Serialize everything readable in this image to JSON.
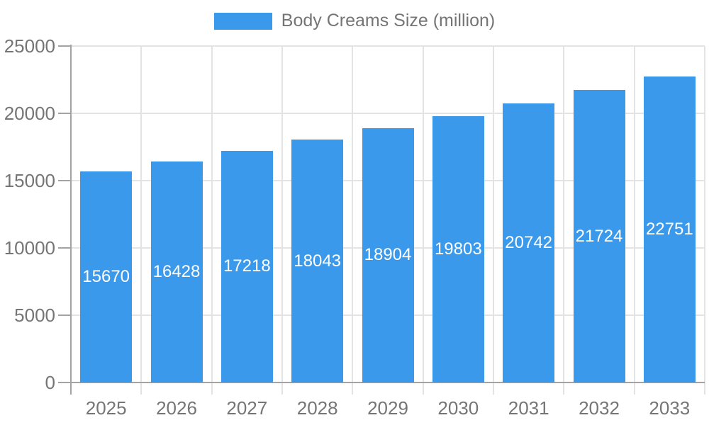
{
  "legend": {
    "label": "Body Creams Size (million)"
  },
  "chart_data": {
    "type": "bar",
    "title": "Body Creams Size (million)",
    "categories": [
      "2025",
      "2026",
      "2027",
      "2028",
      "2029",
      "2030",
      "2031",
      "2032",
      "2033"
    ],
    "series": [
      {
        "name": "Body Creams Size (million)",
        "values": [
          15670,
          16428,
          17218,
          18043,
          18904,
          19803,
          20742,
          21724,
          22751
        ]
      }
    ],
    "value_labels": [
      "15670",
      "16428",
      "17218",
      "18043",
      "18904",
      "19803",
      "20742",
      "21724",
      "22751"
    ],
    "ytick_labels": [
      "0",
      "5000",
      "10000",
      "15000",
      "20000",
      "25000"
    ],
    "yticks": [
      0,
      5000,
      10000,
      15000,
      20000,
      25000
    ],
    "ylim": [
      0,
      25000
    ],
    "xlabel": "",
    "ylabel": "",
    "grid": true,
    "legend_position": "top",
    "colors": {
      "bar": "#3B99EC",
      "grid": "#E3E3E3",
      "axis": "#A3A3A3",
      "tick_text": "#757575",
      "legend_text": "#757575",
      "value_text": "#FFFFFF",
      "background": "#FFFFFF"
    }
  }
}
